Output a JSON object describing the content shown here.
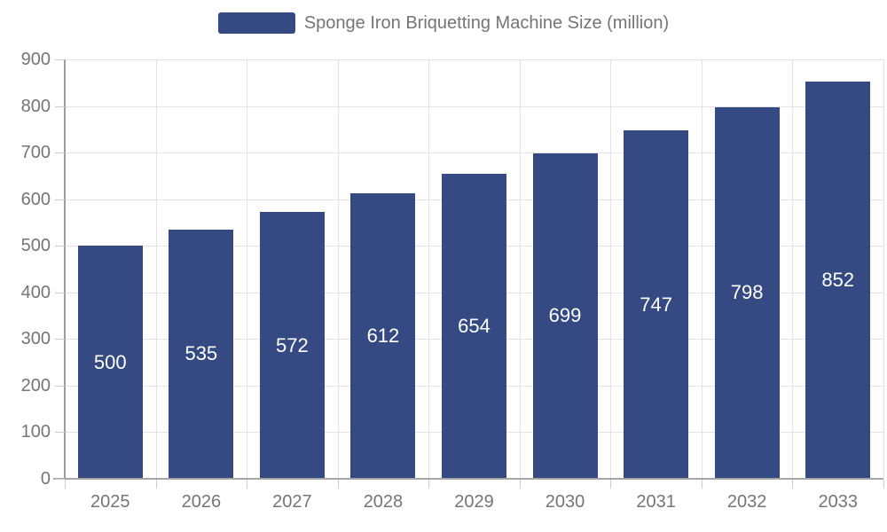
{
  "legend": {
    "label": "Sponge Iron Briquetting Machine Size (million)",
    "swatch_color": "#354a83"
  },
  "chart_data": {
    "type": "bar",
    "title": "Sponge Iron Briquetting Machine Size (million)",
    "series_name": "Sponge Iron Briquetting Machine Size (million)",
    "categories": [
      "2025",
      "2026",
      "2027",
      "2028",
      "2029",
      "2030",
      "2031",
      "2032",
      "2033"
    ],
    "values": [
      500,
      535,
      572,
      612,
      654,
      699,
      747,
      798,
      852
    ],
    "xlabel": "",
    "ylabel": "",
    "ylim": [
      0,
      900
    ],
    "ytick_interval": 100,
    "yticks": [
      0,
      100,
      200,
      300,
      400,
      500,
      600,
      700,
      800,
      900
    ],
    "grid": true,
    "legend_position": "top",
    "bar_color": "#354a83",
    "value_label_color": "#ffffff",
    "axis_label_color": "#757575",
    "gridline_color": "#e3e3e3",
    "axis_line_color": "#9c9c9c"
  }
}
